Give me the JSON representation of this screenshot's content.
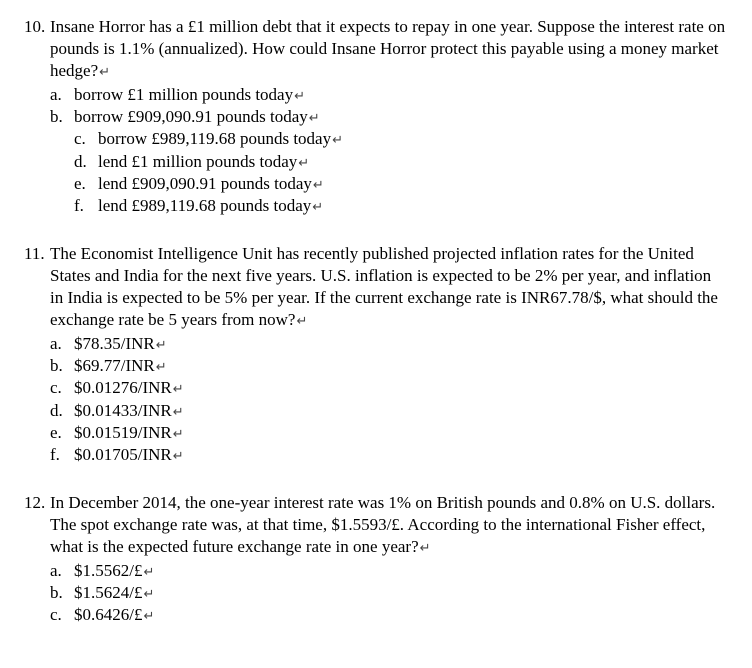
{
  "questions": [
    {
      "number": "10.",
      "stem": "Insane Horror has a £1 million debt that it expects to repay in one year. Suppose the interest rate on pounds is 1.1% (annualized). How could Insane Horror protect this payable using a money market hedge?",
      "options": [
        {
          "letter": "a.",
          "text": "borrow £1 million pounds today",
          "indent": false
        },
        {
          "letter": "b.",
          "text": "borrow £909,090.91 pounds today",
          "indent": false
        },
        {
          "letter": "c.",
          "text": "borrow £989,119.68 pounds today",
          "indent": true
        },
        {
          "letter": "d.",
          "text": "lend £1 million pounds today",
          "indent": true
        },
        {
          "letter": "e.",
          "text": "lend £909,090.91 pounds today",
          "indent": true
        },
        {
          "letter": "f.",
          "text": "lend £989,119.68 pounds today",
          "indent": true
        }
      ]
    },
    {
      "number": "11.",
      "stem": "The Economist Intelligence Unit has recently published projected inflation rates for the United States and India for the next five years. U.S. inflation is expected to be 2% per year, and inflation in India is expected to be 5% per year. If the current exchange rate is INR67.78/$, what should the exchange rate be 5 years from now?",
      "options": [
        {
          "letter": "a.",
          "text": "$78.35/INR",
          "indent": false
        },
        {
          "letter": "b.",
          "text": "$69.77/INR",
          "indent": false
        },
        {
          "letter": "c.",
          "text": "$0.01276/INR",
          "indent": false
        },
        {
          "letter": "d.",
          "text": "$0.01433/INR",
          "indent": false
        },
        {
          "letter": "e.",
          "text": "$0.01519/INR",
          "indent": false
        },
        {
          "letter": "f.",
          "text": "$0.01705/INR",
          "indent": false
        }
      ]
    },
    {
      "number": "12.",
      "stem": "In December 2014, the one-year interest rate was 1% on British pounds and 0.8% on U.S. dollars. The spot exchange rate was, at that time, $1.5593/£. According to the international Fisher effect, what is the expected future exchange rate in one year?",
      "options": [
        {
          "letter": "a.",
          "text": "$1.5562/£",
          "indent": false
        },
        {
          "letter": "b.",
          "text": "$1.5624/£",
          "indent": false
        },
        {
          "letter": "c.",
          "text": "$0.6426/£",
          "indent": false
        }
      ]
    }
  ],
  "return_glyph": "↵"
}
